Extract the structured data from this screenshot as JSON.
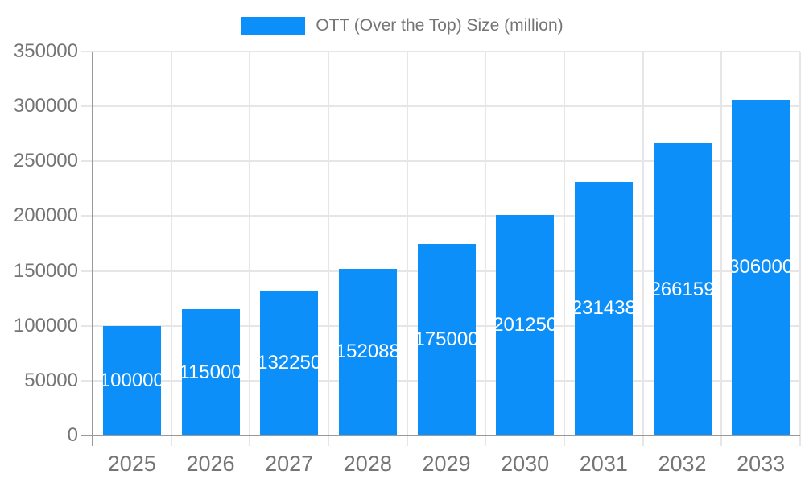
{
  "chart_data": {
    "type": "bar",
    "title": "OTT (Over the Top) Size (million)",
    "legend_position": "top",
    "categories": [
      "2025",
      "2026",
      "2027",
      "2028",
      "2029",
      "2030",
      "2031",
      "2032",
      "2033"
    ],
    "series": [
      {
        "name": "OTT (Over the Top) Size (million)",
        "values": [
          100000,
          115000,
          132250,
          152088,
          175000,
          201250,
          231438,
          266159,
          306000
        ]
      }
    ],
    "bar_labels": [
      "100000",
      "115000",
      "132250",
      "152088",
      "175000",
      "201250",
      "231438",
      "266159",
      "306000"
    ],
    "xlabel": "",
    "ylabel": "",
    "ylim": [
      0,
      350000
    ],
    "y_ticks": [
      0,
      50000,
      100000,
      150000,
      200000,
      250000,
      300000,
      350000
    ],
    "grid": true,
    "colors": {
      "bar": "#0d8ff9",
      "bar_label": "#ffffff",
      "axis_text": "#757575",
      "grid_line": "#e6e6e6",
      "axis_line": "#999999",
      "background": "#ffffff"
    }
  }
}
